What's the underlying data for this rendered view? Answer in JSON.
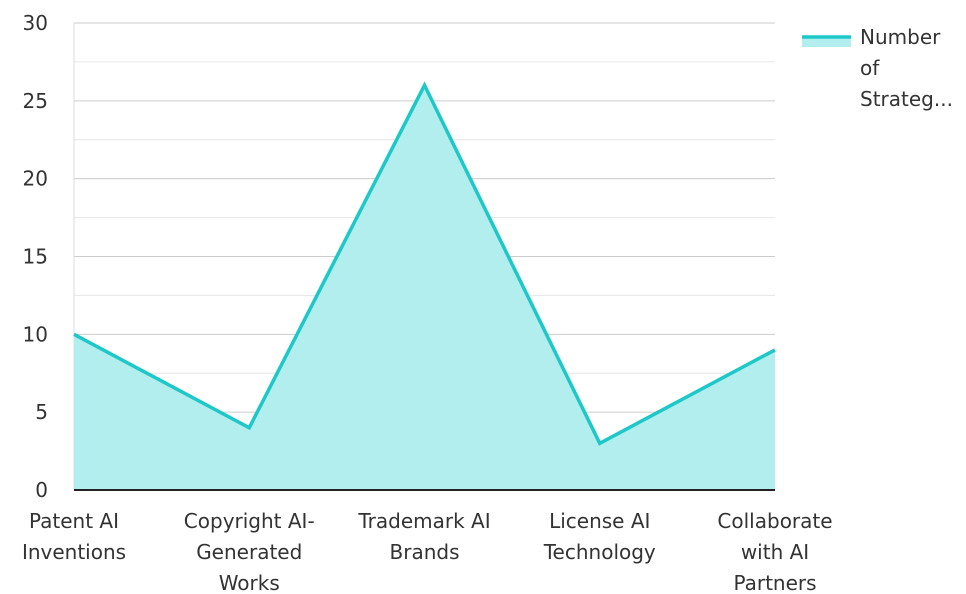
{
  "chart_data": {
    "type": "area",
    "categories": [
      [
        "Patent AI",
        "Inventions"
      ],
      [
        "Copyright AI-",
        "Generated",
        "Works"
      ],
      [
        "Trademark AI",
        "Brands"
      ],
      [
        "License AI",
        "Technology"
      ],
      [
        "Collaborate",
        "with AI",
        "Partners"
      ]
    ],
    "series": [
      {
        "name": "Number of Strateg...",
        "values": [
          10,
          4,
          26,
          3,
          9
        ]
      }
    ],
    "legend_lines": [
      "Number",
      "of",
      "Strateg..."
    ],
    "yticks": [
      0,
      5,
      10,
      15,
      20,
      25,
      30
    ],
    "ylim": [
      0,
      30
    ],
    "grid": true,
    "legend_position": "top-right",
    "colors": {
      "line": "#1ec8c8",
      "fill": "#b2eeee",
      "grid": "#cccccc",
      "axis": "#222222"
    }
  }
}
